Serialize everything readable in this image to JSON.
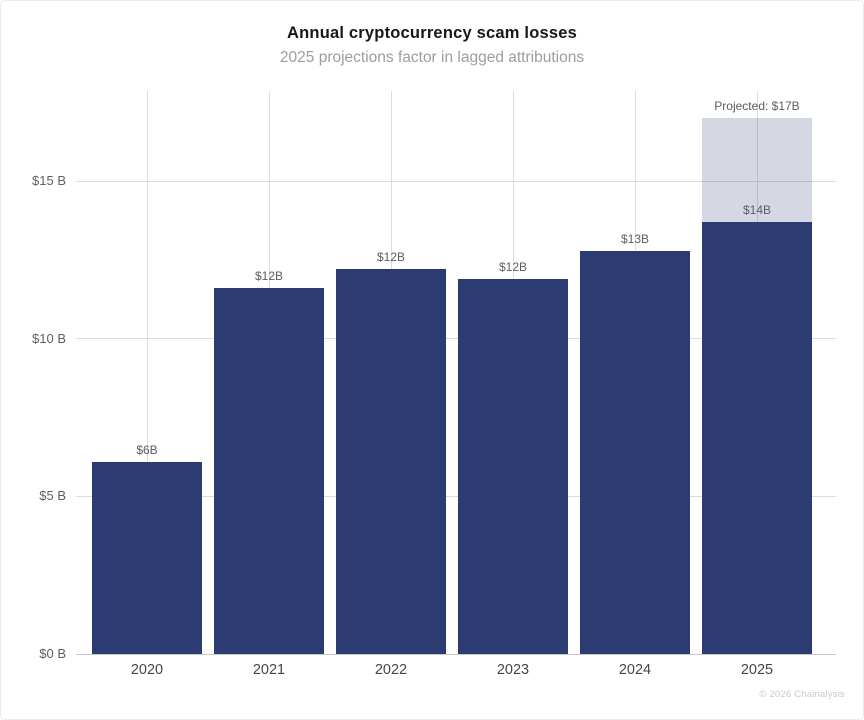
{
  "header": {
    "title": "Annual cryptocurrency scam losses",
    "subtitle": "2025 projections factor in lagged attributions"
  },
  "footer": {
    "credit": "© 2026 Chainalysis"
  },
  "colors": {
    "bar": "#2c3b72",
    "grid": "#dcdcdc",
    "axis_line": "#c9c9c9",
    "title_text": "#17171c",
    "subtitle_text": "#9d9da2",
    "bar_label_text": "#5a5d64",
    "xtick_text": "#46464b",
    "ytick_text": "#5d6066",
    "credit_text": "#c4c8d0"
  },
  "chart_data": {
    "type": "bar",
    "title": "Annual cryptocurrency scam losses",
    "subtitle": "2025 projections factor in lagged attributions",
    "categories": [
      "2020",
      "2021",
      "2022",
      "2023",
      "2024",
      "2025"
    ],
    "values": [
      6.1,
      11.6,
      12.2,
      11.9,
      12.8,
      13.7
    ],
    "bar_labels": [
      "$6B",
      "$12B",
      "$12B",
      "$12B",
      "$13B",
      "$14B"
    ],
    "projected": {
      "category": "2025",
      "total": 17,
      "label": "Projected: $17B"
    },
    "yticks": [
      {
        "value": 0,
        "label": "$0 B"
      },
      {
        "value": 5,
        "label": "$5 B"
      },
      {
        "value": 10,
        "label": "$10 B"
      },
      {
        "value": 15,
        "label": "$15 B"
      }
    ],
    "ylim": [
      0,
      17.86
    ],
    "grid": true,
    "legend": false
  }
}
